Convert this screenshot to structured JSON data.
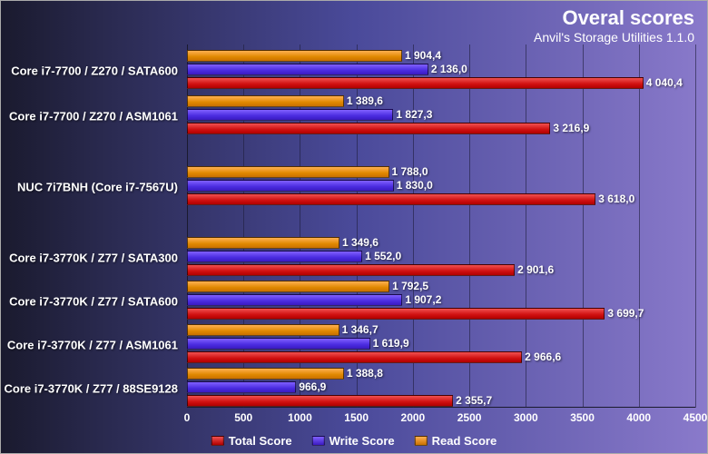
{
  "chart": {
    "type": "bar-horizontal-grouped",
    "title": "Overal scores",
    "subtitle": "Anvil's Storage Utilities 1.1.0",
    "title_fontsize": 22,
    "subtitle_fontsize": 14,
    "background_gradient": [
      "#1a1a2e",
      "#8a7acb"
    ],
    "value_label_color": "#ffffff",
    "axis_label_color": "#ffffff",
    "grid_color": "#1a1a3a",
    "xmin": 0,
    "xmax": 4500,
    "xtick_step": 500,
    "xticks": [
      "0",
      "500",
      "1000",
      "1500",
      "2000",
      "2500",
      "3000",
      "3500",
      "4000",
      "4500"
    ],
    "series": [
      {
        "key": "total",
        "label": "Total Score",
        "color": "#d01010"
      },
      {
        "key": "write",
        "label": "Write Score",
        "color": "#4a2be0"
      },
      {
        "key": "read",
        "label": "Read Score",
        "color": "#e08800"
      }
    ],
    "groups": [
      {
        "label": "Core i7-7700 / Z270 / SATA600",
        "top_pct": 1.5,
        "values": {
          "read": 1904.4,
          "write": 2136.0,
          "total": 4040.4
        },
        "labels": {
          "read": "1 904,4",
          "write": "2 136,0",
          "total": "4 040,4"
        }
      },
      {
        "label": "Core i7-7700 / Z270 / ASM1061",
        "top_pct": 14,
        "values": {
          "read": 1389.6,
          "write": 1827.3,
          "total": 3216.9
        },
        "labels": {
          "read": "1 389,6",
          "write": "1 827,3",
          "total": "3 216,9"
        }
      },
      {
        "label": "NUC 7i7BNH (Core i7-7567U)",
        "top_pct": 33.5,
        "values": {
          "read": 1788.0,
          "write": 1830.0,
          "total": 3618.0
        },
        "labels": {
          "read": "1 788,0",
          "write": "1 830,0",
          "total": "3 618,0"
        }
      },
      {
        "label": "Core i7-3770K / Z77 / SATA300",
        "top_pct": 53,
        "values": {
          "read": 1349.6,
          "write": 1552.0,
          "total": 2901.6
        },
        "labels": {
          "read": "1 349,6",
          "write": "1 552,0",
          "total": "2 901,6"
        }
      },
      {
        "label": "Core i7-3770K / Z77 / SATA600",
        "top_pct": 65,
        "values": {
          "read": 1792.5,
          "write": 1907.2,
          "total": 3699.7
        },
        "labels": {
          "read": "1 792,5",
          "write": "1 907,2",
          "total": "3 699,7"
        }
      },
      {
        "label": "Core i7-3770K / Z77 / ASM1061",
        "top_pct": 77,
        "values": {
          "read": 1346.7,
          "write": 1619.9,
          "total": 2966.6
        },
        "labels": {
          "read": "1 346,7",
          "write": "1 619,9",
          "total": "2 966,6"
        }
      },
      {
        "label": "Core i7-3770K / Z77 / 88SE9128",
        "top_pct": 89,
        "values": {
          "read": 1388.8,
          "write": 966.9,
          "total": 2355.7
        },
        "labels": {
          "read": "1 388,8",
          "write": "966,9",
          "total": "2 355,7"
        }
      }
    ]
  }
}
